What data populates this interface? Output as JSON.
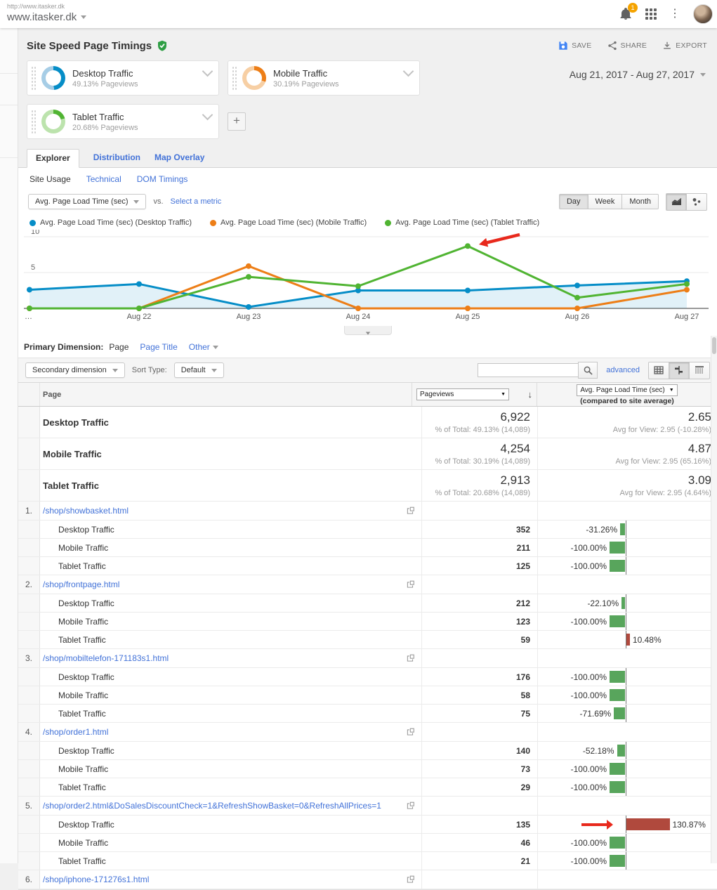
{
  "topbar": {
    "url": "http://www.itasker.dk",
    "account": "www.itasker.dk",
    "notifications": "1"
  },
  "title_bar": {
    "title": "Site Speed Page Timings",
    "save": "SAVE",
    "share": "SHARE",
    "export": "EXPORT",
    "date_range": "Aug 21, 2017 - Aug 27, 2017"
  },
  "segments": [
    {
      "name": "Desktop Traffic",
      "subtitle": "49.13% Pageviews",
      "pct": 49.13,
      "color": "#058dc7",
      "tint": "#a6cde6"
    },
    {
      "name": "Mobile Traffic",
      "subtitle": "30.19% Pageviews",
      "pct": 30.19,
      "color": "#ed7e17",
      "tint": "#f7cfa4"
    },
    {
      "name": "Tablet Traffic",
      "subtitle": "20.68% Pageviews",
      "pct": 20.68,
      "color": "#50b432",
      "tint": "#bce3ad"
    }
  ],
  "tabs": [
    {
      "label": "Explorer",
      "active": true
    },
    {
      "label": "Distribution"
    },
    {
      "label": "Map Overlay"
    }
  ],
  "subtabs": [
    {
      "label": "Site Usage",
      "active": true
    },
    {
      "label": "Technical"
    },
    {
      "label": "DOM Timings"
    }
  ],
  "metric_bar": {
    "metric": "Avg. Page Load Time (sec)",
    "vs": "vs.",
    "select_metric": "Select a metric",
    "granularity": [
      "Day",
      "Week",
      "Month"
    ],
    "active_granularity": "Day"
  },
  "chart_data": {
    "type": "line",
    "x": [
      "…",
      "Aug 22",
      "Aug 23",
      "Aug 24",
      "Aug 25",
      "Aug 26",
      "Aug 27"
    ],
    "ylim": [
      0,
      10
    ],
    "yticks": [
      5,
      10
    ],
    "grid": true,
    "legend_position": "top",
    "series": [
      {
        "name": "Avg. Page Load Time (sec) (Desktop Traffic)",
        "color": "#058dc7",
        "area": true,
        "values": [
          2.6,
          3.4,
          0.2,
          2.5,
          2.5,
          3.2,
          3.8
        ]
      },
      {
        "name": "Avg. Page Load Time (sec) (Mobile Traffic)",
        "color": "#ed7e17",
        "values": [
          0,
          0,
          5.9,
          0,
          0,
          0,
          2.6
        ]
      },
      {
        "name": "Avg. Page Load Time (sec) (Tablet Traffic)",
        "color": "#50b432",
        "values": [
          0,
          0,
          4.4,
          3.1,
          8.7,
          1.5,
          3.4
        ]
      }
    ],
    "annotation": {
      "type": "red-arrow",
      "target": "Tablet Traffic peak on Aug 25"
    }
  },
  "primary_dimension": {
    "label": "Primary Dimension:",
    "options": [
      {
        "label": "Page",
        "active": true
      },
      {
        "label": "Page Title"
      },
      {
        "label": "Other",
        "caret": true
      }
    ]
  },
  "controls": {
    "secondary_dimension": "Secondary dimension",
    "sort_type_label": "Sort Type:",
    "sort_type_value": "Default",
    "search_value": "",
    "advanced": "advanced"
  },
  "table": {
    "columns": {
      "page": "Page",
      "pageviews": "Pageviews",
      "metric": "Avg. Page Load Time (sec)",
      "metric_sub": "(compared to site average)"
    },
    "bar_colors": {
      "negative": "#58a55c",
      "positive": "#b0493d"
    },
    "summary_rows": [
      {
        "label": "Desktop Traffic",
        "pageviews": "6,922",
        "pageviews_sub": "% of Total: 49.13% (14,089)",
        "metric": "2.65",
        "metric_sub": "Avg for View: 2.95 (-10.28%)"
      },
      {
        "label": "Mobile Traffic",
        "pageviews": "4,254",
        "pageviews_sub": "% of Total: 30.19% (14,089)",
        "metric": "4.87",
        "metric_sub": "Avg for View: 2.95 (65.16%)"
      },
      {
        "label": "Tablet Traffic",
        "pageviews": "2,913",
        "pageviews_sub": "% of Total: 20.68% (14,089)",
        "metric": "3.09",
        "metric_sub": "Avg for View: 2.95 (4.64%)"
      }
    ],
    "rows": [
      {
        "index": "1.",
        "page": "/shop/showbasket.html",
        "subrows": [
          {
            "label": "Desktop Traffic",
            "pageviews": "352",
            "pct_label": "-31.26%",
            "pct": -31.26
          },
          {
            "label": "Mobile Traffic",
            "pageviews": "211",
            "pct_label": "-100.00%",
            "pct": -100
          },
          {
            "label": "Tablet Traffic",
            "pageviews": "125",
            "pct_label": "-100.00%",
            "pct": -100
          }
        ]
      },
      {
        "index": "2.",
        "page": "/shop/frontpage.html",
        "subrows": [
          {
            "label": "Desktop Traffic",
            "pageviews": "212",
            "pct_label": "-22.10%",
            "pct": -22.1
          },
          {
            "label": "Mobile Traffic",
            "pageviews": "123",
            "pct_label": "-100.00%",
            "pct": -100
          },
          {
            "label": "Tablet Traffic",
            "pageviews": "59",
            "pct_label": "10.48%",
            "pct": 10.48
          }
        ]
      },
      {
        "index": "3.",
        "page": "/shop/mobiltelefon-171183s1.html",
        "subrows": [
          {
            "label": "Desktop Traffic",
            "pageviews": "176",
            "pct_label": "-100.00%",
            "pct": -100
          },
          {
            "label": "Mobile Traffic",
            "pageviews": "58",
            "pct_label": "-100.00%",
            "pct": -100
          },
          {
            "label": "Tablet Traffic",
            "pageviews": "75",
            "pct_label": "-71.69%",
            "pct": -71.69
          }
        ]
      },
      {
        "index": "4.",
        "page": "/shop/order1.html",
        "subrows": [
          {
            "label": "Desktop Traffic",
            "pageviews": "140",
            "pct_label": "-52.18%",
            "pct": -52.18
          },
          {
            "label": "Mobile Traffic",
            "pageviews": "73",
            "pct_label": "-100.00%",
            "pct": -100
          },
          {
            "label": "Tablet Traffic",
            "pageviews": "29",
            "pct_label": "-100.00%",
            "pct": -100
          }
        ]
      },
      {
        "index": "5.",
        "page": "/shop/order2.html&DoSalesDiscountCheck=1&RefreshShowBasket=0&RefreshAllPrices=1",
        "subrows": [
          {
            "label": "Desktop Traffic",
            "pageviews": "135",
            "pct_label": "130.87%",
            "pct": 130.87,
            "arrow": true
          },
          {
            "label": "Mobile Traffic",
            "pageviews": "46",
            "pct_label": "-100.00%",
            "pct": -100
          },
          {
            "label": "Tablet Traffic",
            "pageviews": "21",
            "pct_label": "-100.00%",
            "pct": -100
          }
        ]
      },
      {
        "index": "6.",
        "page": "/shop/iphone-171276s1.html",
        "subrows": []
      }
    ]
  }
}
